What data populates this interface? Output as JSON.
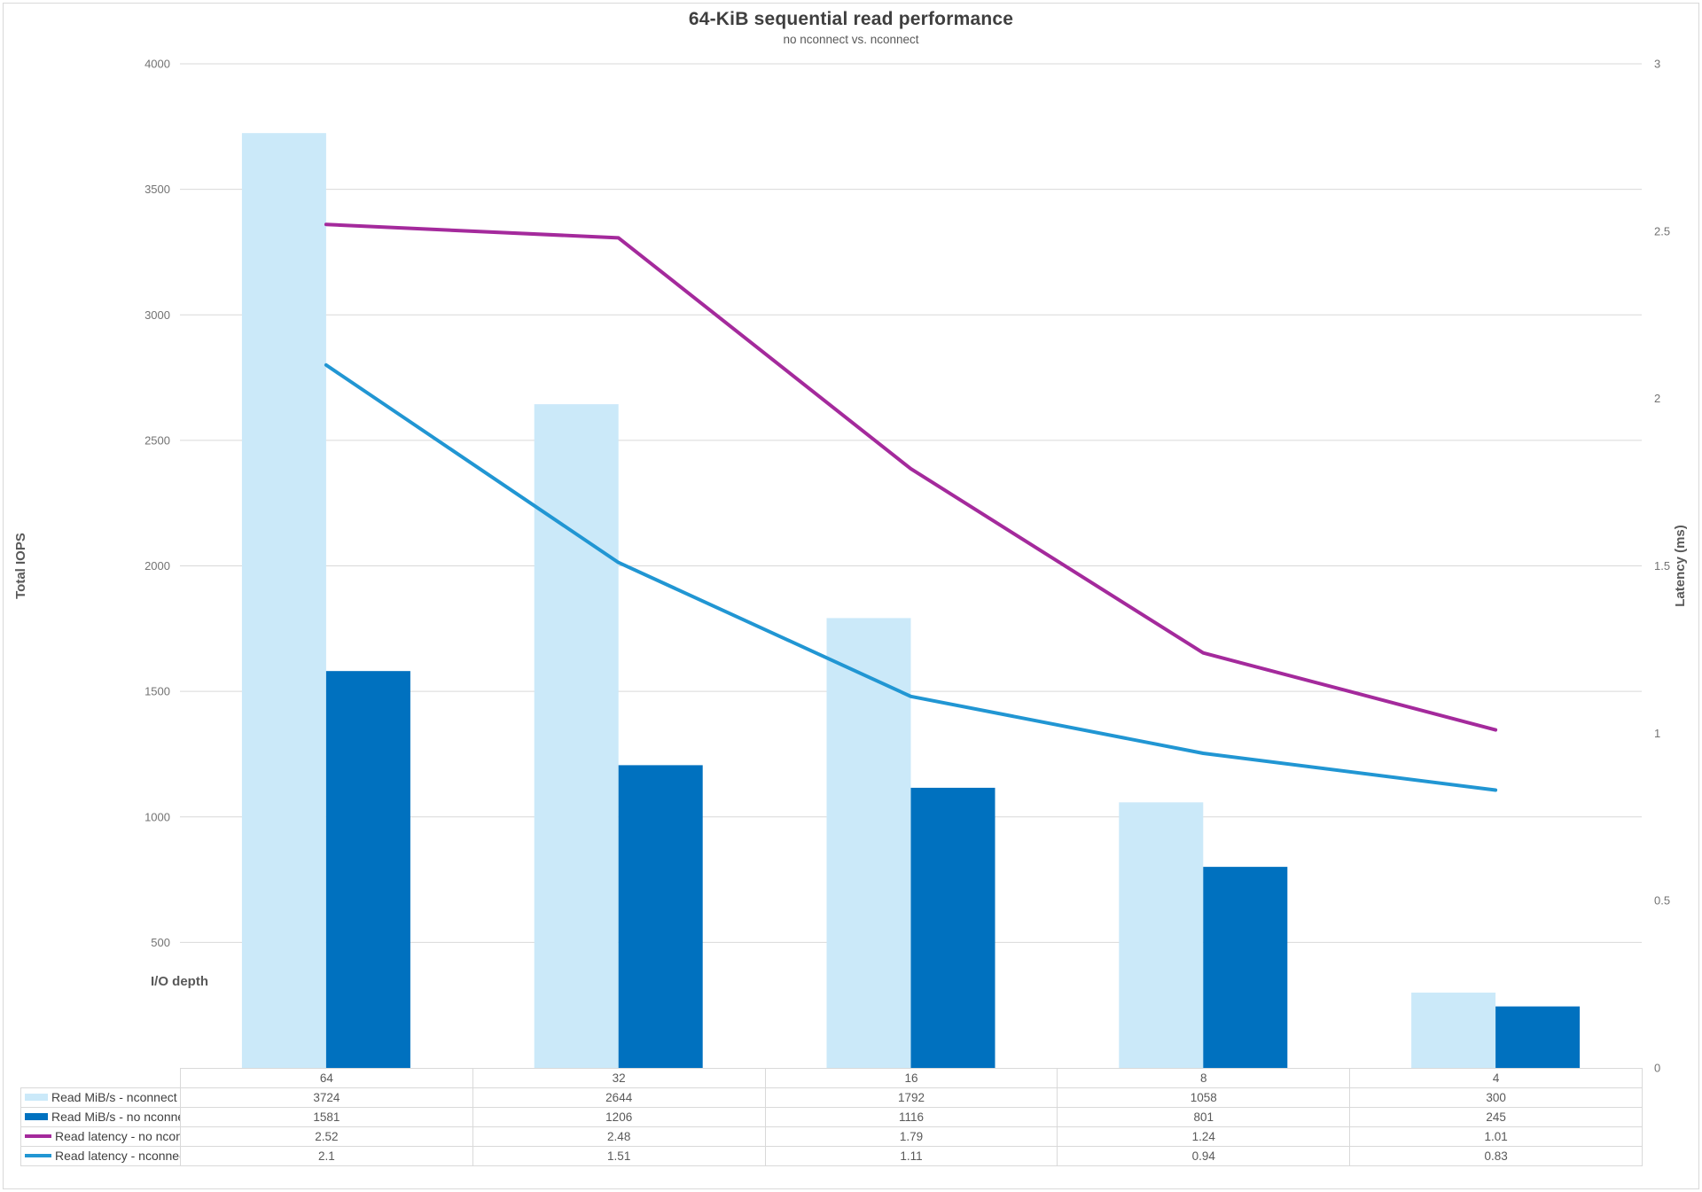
{
  "header": {
    "title": "64-KiB sequential read performance",
    "subtitle": "no nconnect vs. nconnect"
  },
  "axes": {
    "left": {
      "title": "Total IOPS"
    },
    "right": {
      "title": "Latency (ms)"
    },
    "category": {
      "title": "I/O depth"
    }
  },
  "chart_data": {
    "type": "combo",
    "title": "64-KiB sequential read performance",
    "subtitle": "no nconnect vs. nconnect",
    "categories": [
      "64",
      "32",
      "16",
      "8",
      "4"
    ],
    "xlabel": "I/O depth",
    "ylabel_left": "Total IOPS",
    "ylabel_right": "Latency (ms)",
    "ylim_left": [
      0,
      4000
    ],
    "ylim_right": [
      0,
      3
    ],
    "left_ticks": [
      "4000",
      "3500",
      "3000",
      "2500",
      "2000",
      "1500",
      "1000",
      "500"
    ],
    "right_ticks": [
      "3",
      "2.5",
      "2",
      "1.5",
      "1",
      "0.5",
      "0"
    ],
    "grid": "horizontal",
    "legend_position": "table-left",
    "series": [
      {
        "name": "Read MiB/s - nconnect",
        "type": "bar",
        "axis": "left",
        "color": "#CBE9F9",
        "values": [
          3724,
          2644,
          1792,
          1058,
          300
        ],
        "display": [
          "3724",
          "2644",
          "1792",
          "1058",
          "300"
        ]
      },
      {
        "name": "Read MiB/s - no nconnect",
        "type": "bar",
        "axis": "left",
        "color": "#0071BF",
        "values": [
          1581,
          1206,
          1116,
          801,
          245
        ],
        "display": [
          "1581",
          "1206",
          "1116",
          "801",
          "245"
        ]
      },
      {
        "name": "Read latency - no nconnect",
        "type": "line",
        "axis": "right",
        "color": "#A42A9C",
        "values": [
          2.52,
          2.48,
          1.79,
          1.24,
          1.01
        ],
        "display": [
          "2.52",
          "2.48",
          "1.79",
          "1.24",
          "1.01"
        ]
      },
      {
        "name": "Read latency - nconnect",
        "type": "line",
        "axis": "right",
        "color": "#2196D3",
        "values": [
          2.1,
          1.51,
          1.11,
          0.94,
          0.83
        ],
        "display": [
          "2.1",
          "1.51",
          "1.11",
          "0.94",
          "0.83"
        ]
      }
    ]
  },
  "colors": {
    "background": "#FFFFFF",
    "grid": "#D9D9D9",
    "border": "#D9D9D9",
    "title": "#3F3F3F",
    "subtitle": "#595959",
    "tick": "#737373",
    "axis_title": "#595959",
    "table_text": "#595959",
    "legend_text": "#404040"
  }
}
